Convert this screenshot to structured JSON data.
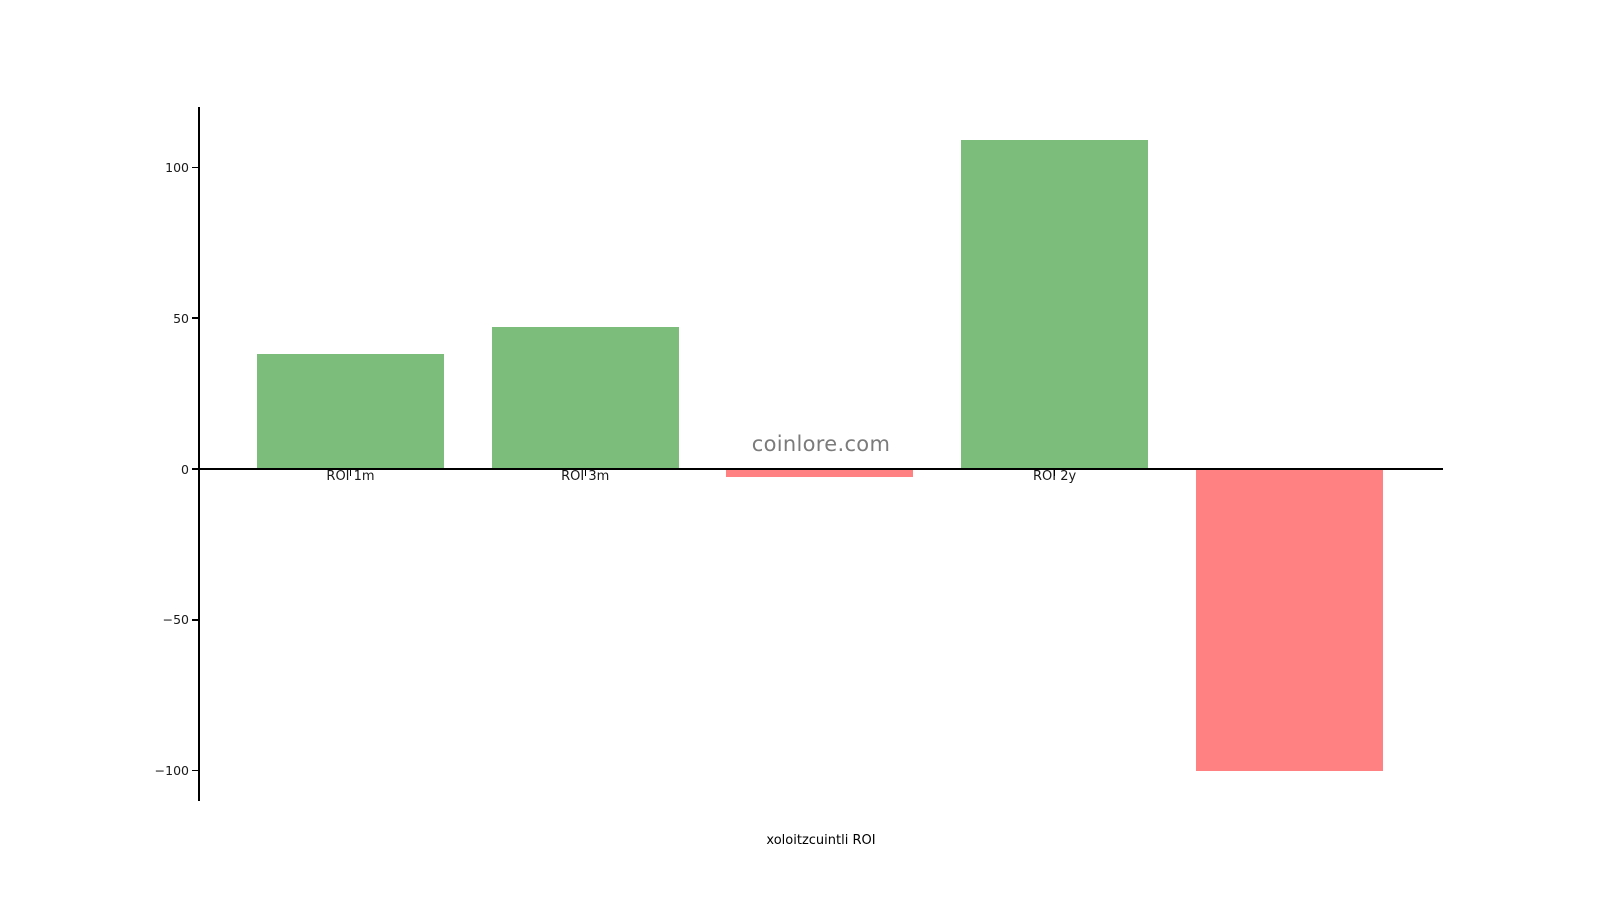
{
  "page": {
    "background": "#ffffff"
  },
  "watermark": {
    "text": "coinlore.com",
    "color": "#7b7b7b"
  },
  "chart_data": {
    "type": "bar",
    "title": "xoloitzcuintli ROI",
    "categories": [
      "ROI 1m",
      "ROI 3m",
      "",
      "ROI 2y",
      ""
    ],
    "values": [
      38,
      47,
      -2.5,
      109,
      -100
    ],
    "positive_color": "#7dbd7c",
    "negative_color": "#ff8181",
    "y_tick_values": [
      100,
      50,
      0,
      -50,
      -100
    ],
    "y_tick_labels": [
      "100",
      "50",
      "0",
      "−50",
      "−100"
    ],
    "ylim": [
      -110,
      120
    ],
    "xlabel": "",
    "ylabel": "",
    "grid": false,
    "legend": false,
    "axis_color": "#000000",
    "tick_text_color": "#1a1a1a",
    "title_color": "#000000"
  }
}
